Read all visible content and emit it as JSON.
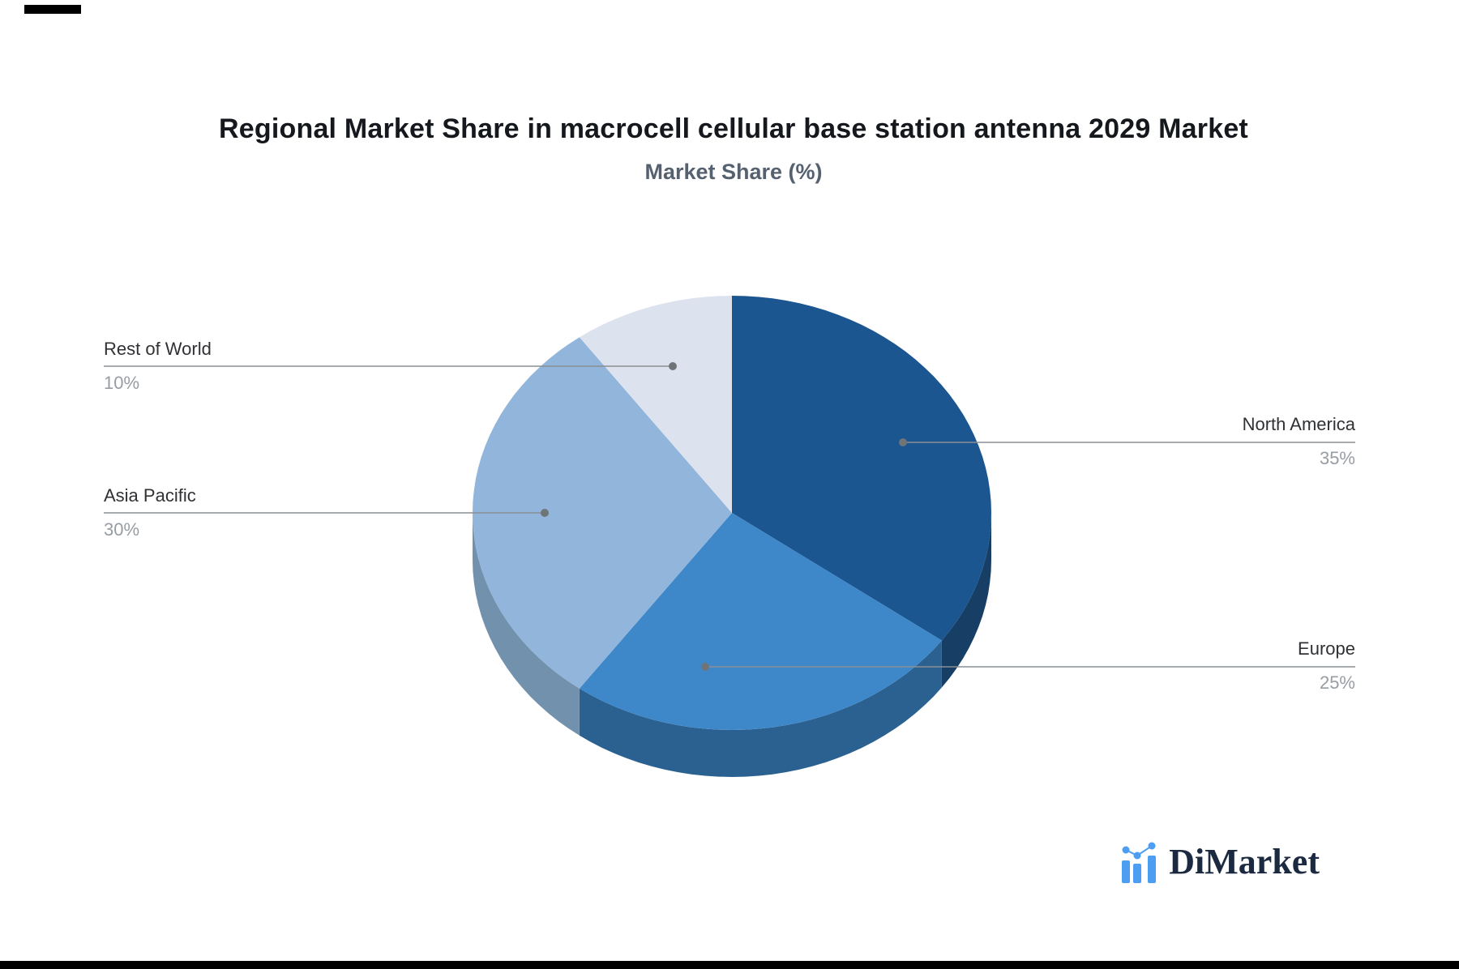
{
  "title": "Regional Market Share in macrocell cellular base station antenna 2029 Market",
  "subtitle": "Market Share (%)",
  "logo": {
    "text": "DiMarket",
    "icon": "bar-chart-icon",
    "icon_color": "#4d9df3",
    "text_color": "#1b2a41"
  },
  "chart_data": {
    "type": "pie",
    "title": "Regional Market Share in macrocell cellular base station antenna 2029 Market",
    "subtitle": "Market Share (%)",
    "unit": "%",
    "effect": "3d",
    "direction": "clockwise",
    "start_angle_deg": 0,
    "leader_line_color": "#8a8f94",
    "leader_dot_color": "#6f7478",
    "slices": [
      {
        "label": "North America",
        "value": 35,
        "display": "35%",
        "color": "#1b5690",
        "side_color": "#173f66",
        "label_side": "right"
      },
      {
        "label": "Europe",
        "value": 25,
        "display": "25%",
        "color": "#3e88ca",
        "side_color": "#2a6191",
        "label_side": "right"
      },
      {
        "label": "Asia Pacific",
        "value": 30,
        "display": "30%",
        "color": "#92b5dc",
        "side_color": "#7291ad",
        "label_side": "left"
      },
      {
        "label": "Rest of World",
        "value": 10,
        "display": "10%",
        "color": "#dde3ee",
        "side_color": "#b9c4d6",
        "label_side": "left"
      }
    ]
  }
}
